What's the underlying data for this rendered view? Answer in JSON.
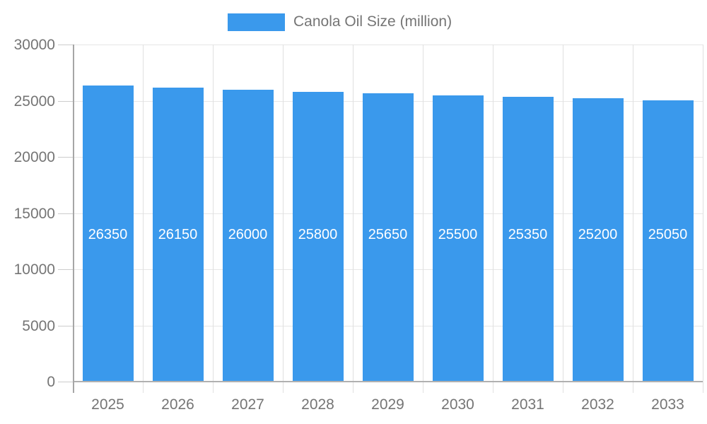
{
  "chart_data": {
    "type": "bar",
    "title": "Canola Oil Size (million)",
    "legend": {
      "position": "top",
      "label": "Canola Oil Size (million)"
    },
    "categories": [
      "2025",
      "2026",
      "2027",
      "2028",
      "2029",
      "2030",
      "2031",
      "2032",
      "2033"
    ],
    "values": [
      26350,
      26150,
      26000,
      25800,
      25650,
      25500,
      25350,
      25200,
      25050
    ],
    "bar_value_labels": [
      "26350",
      "26150",
      "26000",
      "25800",
      "25650",
      "25500",
      "25350",
      "25200",
      "25050"
    ],
    "xlabel": "",
    "ylabel": "",
    "ylim": [
      0,
      30000
    ],
    "ytick_interval": 5000,
    "ytick_labels_top_to_bottom": [
      "30000",
      "25000",
      "20000",
      "15000",
      "10000",
      "5000",
      "0"
    ],
    "grid": true
  },
  "colors": {
    "bar": "#3A99EC",
    "axis_text": "#757575",
    "bar_label_text": "#FFFFFF",
    "gridline": "#E6E6E6",
    "vertical_gridline": "#E0E0E0",
    "axis_line": "#A6A6A6",
    "baseline": "#B0B0B0",
    "tick": "#CCCCCC",
    "background": "#FFFFFF"
  }
}
